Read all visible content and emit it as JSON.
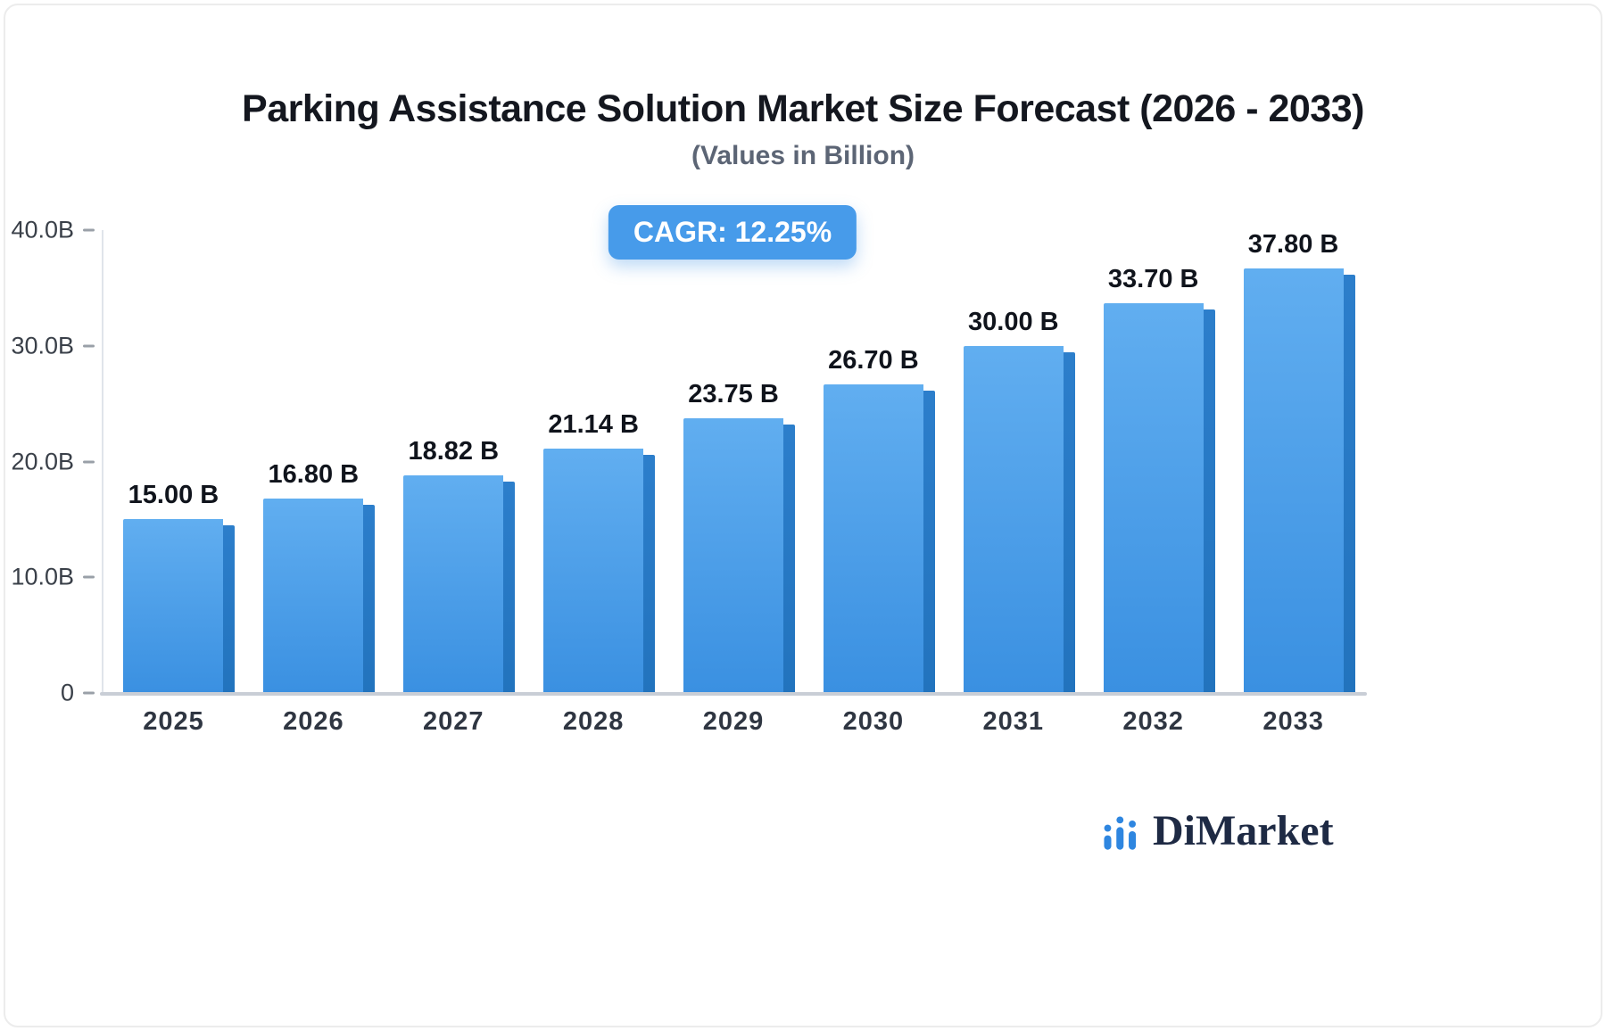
{
  "header": {
    "title": "Parking Assistance Solution Market Size Forecast (2026 - 2033)",
    "subtitle": "(Values in Billion)"
  },
  "badge": {
    "label": "CAGR: 12.25%",
    "color": "#479BEA"
  },
  "brand": {
    "name": "DiMarket",
    "icon": "bar-chart-logo-icon",
    "icon_color": "#2E86E0"
  },
  "chart_data": {
    "type": "bar",
    "title": "Parking Assistance Solution Market Size Forecast (2026 - 2033)",
    "subtitle": "(Values in Billion)",
    "categories": [
      "2025",
      "2026",
      "2027",
      "2028",
      "2029",
      "2030",
      "2031",
      "2032",
      "2033"
    ],
    "values": [
      15.0,
      16.8,
      18.82,
      21.14,
      23.75,
      26.7,
      30.0,
      33.7,
      37.8
    ],
    "value_labels": [
      "15.00 B",
      "16.80 B",
      "18.82 B",
      "21.14 B",
      "23.75 B",
      "26.70 B",
      "30.00 B",
      "33.70 B",
      "37.80 B"
    ],
    "xlabel": "",
    "ylabel": "",
    "ylim": [
      0,
      40
    ],
    "yticks": [
      {
        "label": "40.0B",
        "value": 40
      },
      {
        "label": "30.0B",
        "value": 30
      },
      {
        "label": "20.0B",
        "value": 20
      },
      {
        "label": "10.0B",
        "value": 10
      },
      {
        "label": "0",
        "value": 0
      }
    ],
    "grid": false,
    "legend": false,
    "bar_color_top": "#61AEF0",
    "bar_color_bottom": "#3A90E1",
    "bar_side_color": "#2273BD"
  }
}
